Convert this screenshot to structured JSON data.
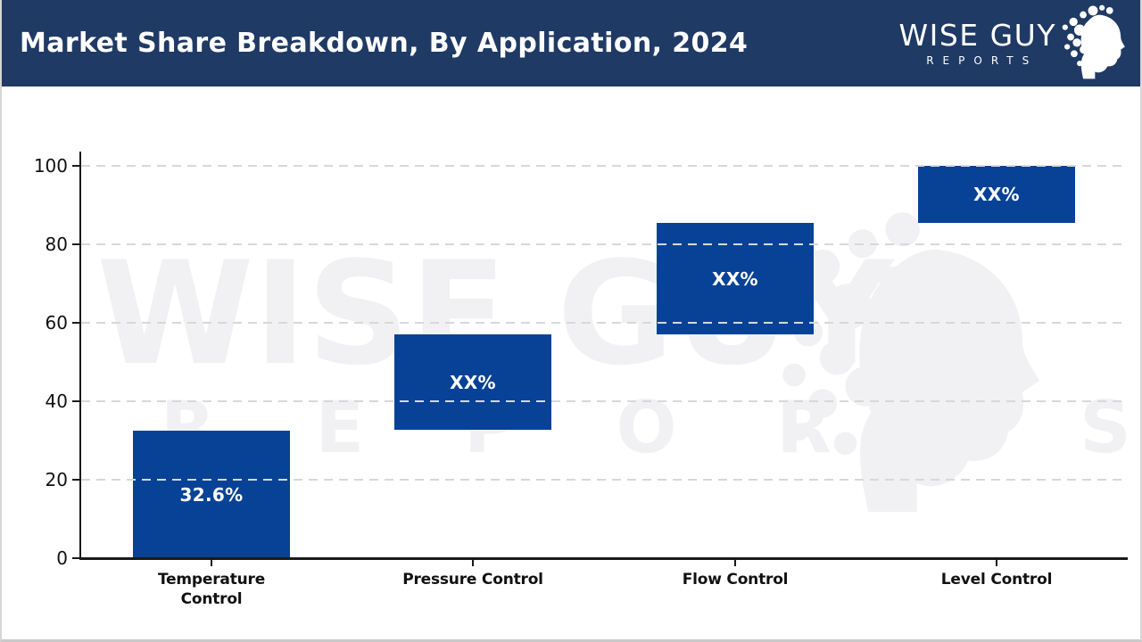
{
  "header": {
    "title": "Market Share Breakdown, By Application, 2024",
    "bg_color": "#1f3a64",
    "logo": {
      "line1": "WISE GUY",
      "line2": "REPORTS"
    }
  },
  "watermark": {
    "line1": "WISE GUY",
    "line2": "R E P O R T S"
  },
  "colors": {
    "header_bg": "#1f3a64",
    "bar_blue": "#084296",
    "axis_black": "#1a1a1a",
    "grid_gray": "#d8d8d8",
    "watermark_gray": "#f1f1f4",
    "bar_label_white": "#ffffff"
  },
  "chart_data": {
    "type": "bar",
    "subtype": "waterfall",
    "title": "Market Share Breakdown, By Application, 2024",
    "categories": [
      "Temperature Control",
      "Pressure Control",
      "Flow Control",
      "Level Control"
    ],
    "segments": [
      {
        "category": "Temperature Control",
        "start": 0,
        "end": 32.6,
        "value": 32.6,
        "label": "32.6%"
      },
      {
        "category": "Pressure Control",
        "start": 32.6,
        "end": 57.0,
        "value": 24.4,
        "label": "XX%"
      },
      {
        "category": "Flow Control",
        "start": 57.0,
        "end": 85.5,
        "value": 28.5,
        "label": "XX%"
      },
      {
        "category": "Level Control",
        "start": 85.5,
        "end": 100.0,
        "value": 14.5,
        "label": "XX%"
      }
    ],
    "yticks": [
      0,
      20,
      40,
      60,
      80,
      100
    ],
    "ylim": [
      0,
      100
    ],
    "xlabel": "",
    "ylabel": "",
    "grid": "dashed horizontal gridlines, drawn over bars",
    "legend": "none",
    "bar_color": "#084296",
    "bar_label_color": "#ffffff"
  }
}
